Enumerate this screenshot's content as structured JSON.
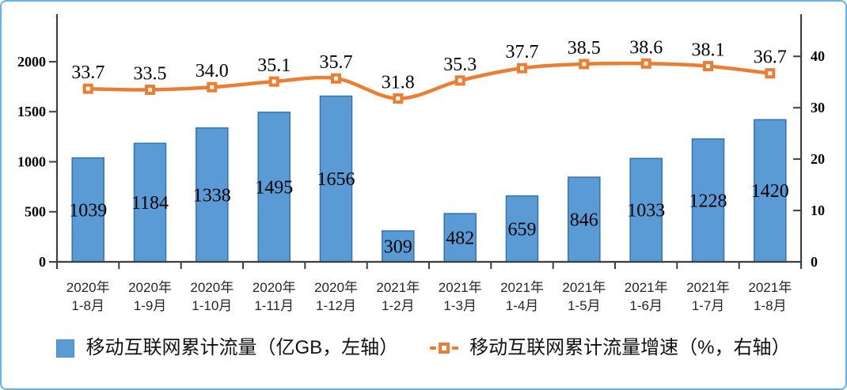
{
  "frame": {
    "border_color": "#63B4E6",
    "background": "#FFFFFF"
  },
  "legend": {
    "items": [
      {
        "label": "移动互联网累计流量（亿GB，左轴）",
        "swatch": "blue-bar-square",
        "color": "#5B9BD5"
      },
      {
        "label": "移动互联网累计流量增速（%，右轴）",
        "swatch": "orange-dash-square-dash",
        "color": "#ED7D31"
      }
    ]
  },
  "chart_data": {
    "type": "bar+line",
    "title": "",
    "grid": false,
    "legend_position": "bottom",
    "axis_color": "#3F3F3F",
    "label_color": "#000000",
    "categories": [
      {
        "top": "2020年",
        "bottom": "1-8月"
      },
      {
        "top": "2020年",
        "bottom": "1-9月"
      },
      {
        "top": "2020年",
        "bottom": "1-10月"
      },
      {
        "top": "2020年",
        "bottom": "1-11月"
      },
      {
        "top": "2020年",
        "bottom": "1-12月"
      },
      {
        "top": "2021年",
        "bottom": "1-2月"
      },
      {
        "top": "2021年",
        "bottom": "1-3月"
      },
      {
        "top": "2021年",
        "bottom": "1-4月"
      },
      {
        "top": "2021年",
        "bottom": "1-5月"
      },
      {
        "top": "2021年",
        "bottom": "1-6月"
      },
      {
        "top": "2021年",
        "bottom": "1-7月"
      },
      {
        "top": "2021年",
        "bottom": "1-8月"
      }
    ],
    "series": [
      {
        "name": "移动互联网累计流量（亿GB，左轴）",
        "type": "bar",
        "axis": "left",
        "color": "#5B9BD5",
        "border_color": "#2E75B6",
        "values": [
          1039,
          1184,
          1338,
          1495,
          1656,
          309,
          482,
          659,
          846,
          1033,
          1228,
          1420
        ],
        "labels": [
          "1039",
          "1184",
          "1338",
          "1495",
          "1656",
          "309",
          "482",
          "659",
          "846",
          "1033",
          "1228",
          "1420"
        ]
      },
      {
        "name": "移动互联网累计流量增速（%，右轴）",
        "type": "line",
        "axis": "right",
        "color": "#ED7D31",
        "marker": "open-square",
        "values": [
          33.7,
          33.5,
          34.0,
          35.1,
          35.7,
          31.8,
          35.3,
          37.7,
          38.5,
          38.6,
          38.1,
          36.7
        ],
        "labels": [
          "33.7",
          "33.5",
          "34.0",
          "35.1",
          "35.7",
          "31.8",
          "35.3",
          "37.7",
          "38.5",
          "38.6",
          "38.1",
          "36.7"
        ]
      }
    ],
    "left_axis": {
      "ticks": [
        0,
        500,
        1000,
        1500,
        2000
      ],
      "range": [
        0,
        2474
      ]
    },
    "right_axis": {
      "ticks": [
        0,
        10,
        20,
        30,
        40
      ],
      "range": [
        0,
        48.2
      ]
    }
  }
}
